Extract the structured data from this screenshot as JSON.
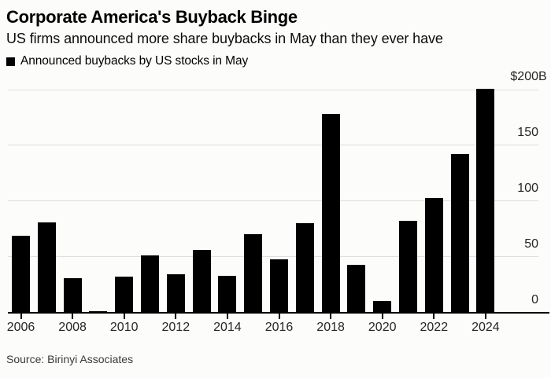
{
  "header": {
    "title": "Corporate America's Buyback Binge",
    "subtitle": "US firms announced more share buybacks in May than they ever have",
    "legend_label": "Announced buybacks by US stocks in May"
  },
  "source": "Source: Birinyi Associates",
  "colors": {
    "background": "#fcfcfa",
    "bar": "#000000",
    "gridline": "#dedede",
    "axis": "#000000",
    "axis_text": "#262626",
    "source_text": "#3a3a3a"
  },
  "chart_data": {
    "type": "bar",
    "title": "Announced buybacks by US stocks in May",
    "unit": "billion USD",
    "categories": [
      2006,
      2007,
      2008,
      2009,
      2010,
      2011,
      2012,
      2013,
      2014,
      2015,
      2016,
      2017,
      2018,
      2019,
      2020,
      2021,
      2022,
      2023,
      2024
    ],
    "values": [
      69,
      81,
      31,
      1,
      32,
      51,
      34,
      56,
      33,
      70,
      48,
      80,
      178,
      43,
      10,
      82,
      103,
      142,
      201
    ],
    "ylim": [
      0,
      200
    ],
    "yticks": [
      {
        "value": 0,
        "label": "0",
        "suffix": ""
      },
      {
        "value": 50,
        "label": "50",
        "suffix": ""
      },
      {
        "value": 100,
        "label": "100",
        "suffix": ""
      },
      {
        "value": 150,
        "label": "150",
        "suffix": ""
      },
      {
        "value": 200,
        "label": "$200",
        "suffix": "B"
      }
    ],
    "xticks": [
      2006,
      2008,
      2010,
      2012,
      2014,
      2016,
      2018,
      2020,
      2022,
      2024
    ],
    "grid": "horizontal",
    "legend_position": "top-left",
    "y_axis_side": "right"
  }
}
